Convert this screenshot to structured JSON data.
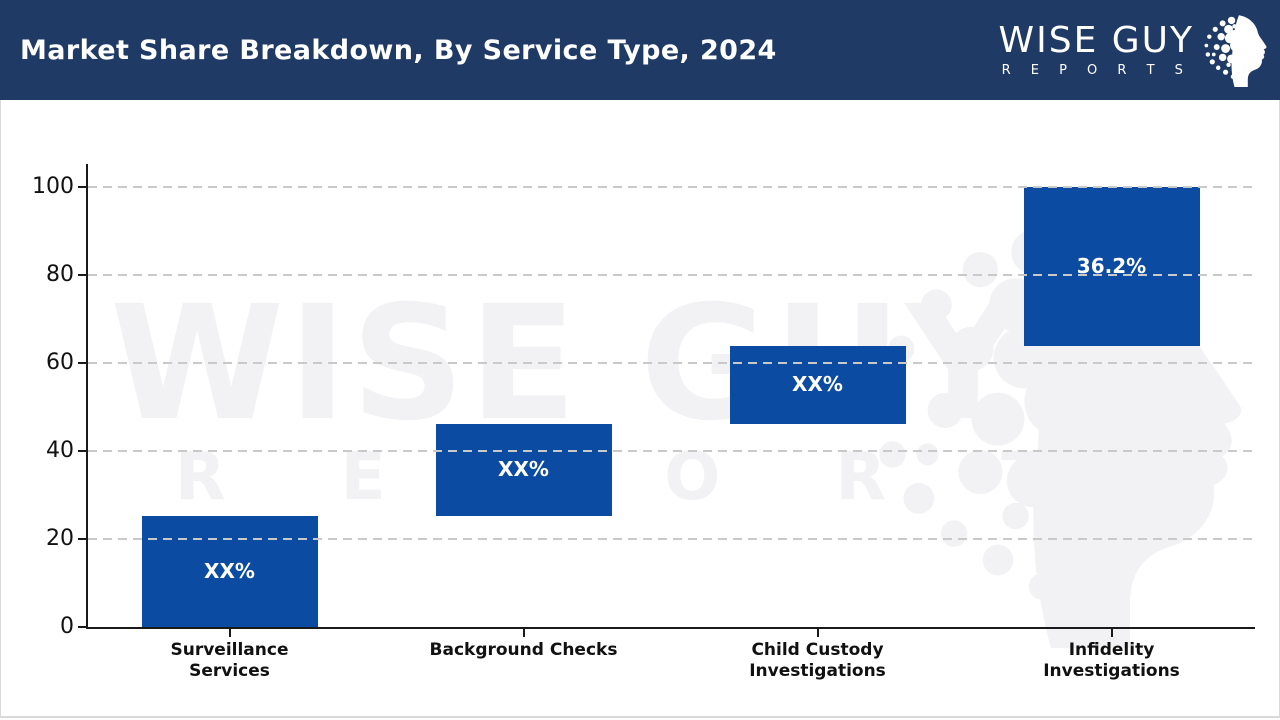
{
  "header": {
    "title": "Market Share Breakdown, By Service Type, 2024",
    "bg_color": "#203A66"
  },
  "logo": {
    "name": "WISE GUY",
    "subname": "R E P O R T S"
  },
  "watermark": {
    "name": "WISE GUY",
    "subname": "R E P O R T S"
  },
  "chart_data": {
    "type": "bar",
    "subtype": "waterfall",
    "title": "Market Share Breakdown, By Service Type, 2024",
    "categories": [
      [
        "Surveillance",
        "Services"
      ],
      [
        "Background Checks"
      ],
      [
        "Child Custody",
        "Investigations"
      ],
      [
        "Infidelity",
        "Investigations"
      ]
    ],
    "segments": [
      {
        "category": "Surveillance Services",
        "label": "XX%",
        "start": 0,
        "end": 25.2
      },
      {
        "category": "Background Checks",
        "label": "XX%",
        "start": 25.2,
        "end": 46.2
      },
      {
        "category": "Child Custody Investigations",
        "label": "XX%",
        "start": 46.2,
        "end": 63.8
      },
      {
        "category": "Infidelity Investigations",
        "label": "36.2%",
        "start": 63.8,
        "end": 100
      }
    ],
    "yticks": [
      0,
      20,
      40,
      60,
      80,
      100
    ],
    "ylim": [
      0,
      105
    ],
    "bar_color": "#0B4BA1",
    "value_label_color": "#FFFFFF",
    "grid": "dashed-horizontal",
    "gridline_color": "#C9C9C9",
    "legend": "none"
  }
}
